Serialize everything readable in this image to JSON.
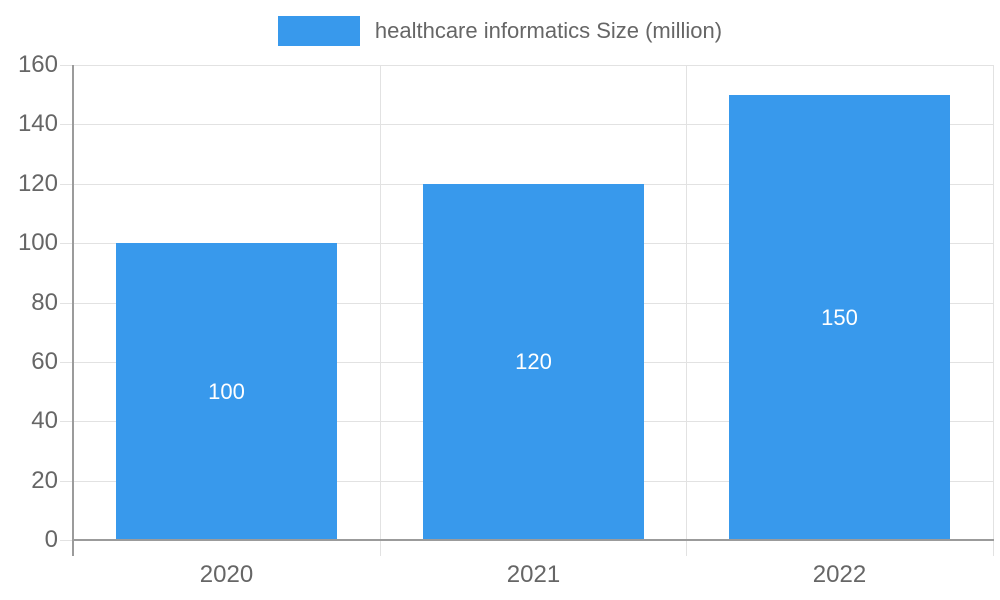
{
  "chart_data": {
    "type": "bar",
    "title": "",
    "legend_label": "healthcare informatics Size (million)",
    "legend_position": "top",
    "categories": [
      "2020",
      "2021",
      "2022"
    ],
    "series": [
      {
        "name": "healthcare informatics Size (million)",
        "values": [
          100,
          120,
          150
        ],
        "value_labels": [
          "100",
          "120",
          "150"
        ]
      }
    ],
    "xlabel": "",
    "ylabel": "",
    "ylim": [
      0,
      160
    ],
    "ytick_step": 20,
    "ytick_labels": [
      "0",
      "20",
      "40",
      "60",
      "80",
      "100",
      "120",
      "140",
      "160"
    ],
    "grid": true,
    "colors": {
      "bar": "#3899EC",
      "axis_line": "#9B9B9B",
      "gridline": "#E2E2E2",
      "tick_text": "#666666",
      "legend_text": "#666666",
      "value_label_text": "#FFFFFF",
      "background": "#FFFFFF"
    }
  }
}
